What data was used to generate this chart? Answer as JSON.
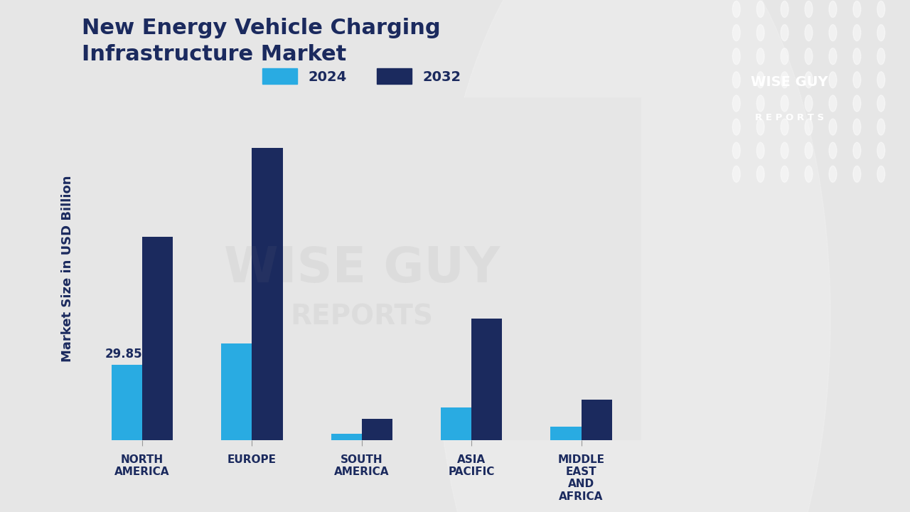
{
  "title": "New Energy Vehicle Charging\nInfrastructure Market",
  "ylabel": "Market Size in USD Billion",
  "categories": [
    "NORTH\nAMERICA",
    "EUROPE",
    "SOUTH\nAMERICA",
    "ASIA\nPACIFIC",
    "MIDDLE\nEAST\nAND\nAFRICA"
  ],
  "values_2024": [
    29.85,
    38.0,
    2.5,
    13.0,
    5.5
  ],
  "values_2032": [
    80.0,
    115.0,
    8.5,
    48.0,
    16.0
  ],
  "color_2024": "#29ABE2",
  "color_2032": "#1B2A5E",
  "annotation_text": "29.85",
  "background_color": "#E6E6E6",
  "title_color": "#1B2A5E",
  "label_color": "#1B2A5E",
  "legend_labels": [
    "2024",
    "2032"
  ],
  "right_panel_color": "#1B2A5E",
  "bar_width": 0.28,
  "ylim": [
    0,
    135
  ]
}
